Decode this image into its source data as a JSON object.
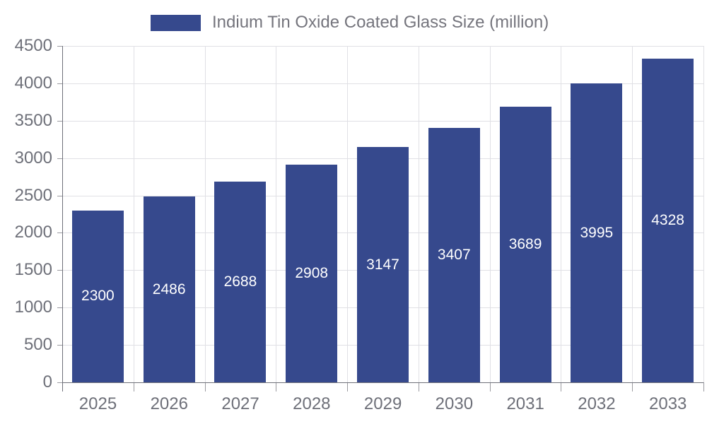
{
  "chart_data": {
    "type": "bar",
    "title": "",
    "series_name": "Indium Tin Oxide Coated Glass Size (million)",
    "categories": [
      "2025",
      "2026",
      "2027",
      "2028",
      "2029",
      "2030",
      "2031",
      "2032",
      "2033"
    ],
    "values": [
      2300,
      2486,
      2688,
      2908,
      3147,
      3407,
      3689,
      3995,
      4328
    ],
    "xlabel": "",
    "ylabel": "",
    "ylim": [
      0,
      4500
    ],
    "y_ticks": [
      0,
      500,
      1000,
      1500,
      2000,
      2500,
      3000,
      3500,
      4000,
      4500
    ],
    "grid": true,
    "legend_position": "top-center",
    "colors": {
      "bar": "#36498d",
      "value_label": "#ffffff",
      "grid_line": "#e0e0e5",
      "axis_line": "#6e7079",
      "axis_tick": "#9a9aa0",
      "axis_text": "#6e7079",
      "legend_text": "#75757d",
      "background": "#ffffff"
    }
  }
}
